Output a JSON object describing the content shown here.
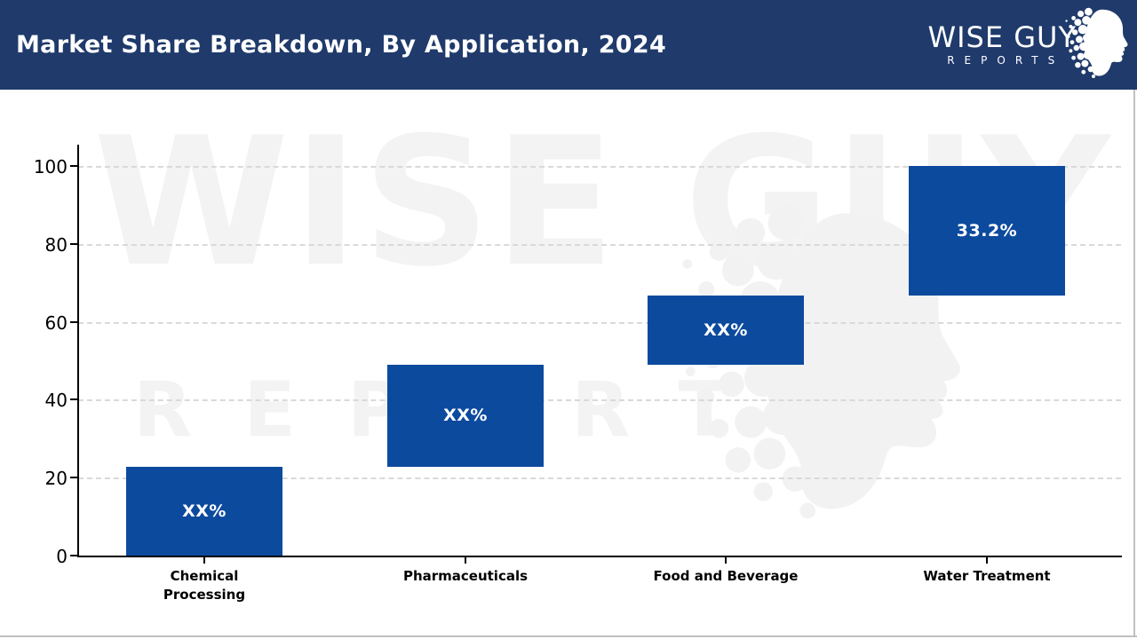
{
  "header": {
    "title": "Market Share Breakdown, By Application, 2024",
    "logo": {
      "line1": "WISE GUY",
      "line2": "REPORTS"
    }
  },
  "watermark": {
    "line1": "WISE GUY",
    "line2": "REPORTS"
  },
  "chart_data": {
    "type": "bar",
    "subtype": "waterfall",
    "title": "Market Share Breakdown, By Application, 2024",
    "categories": [
      "Chemical Processing",
      "Pharmaceuticals",
      "Food and Beverage",
      "Water Treatment"
    ],
    "series": [
      {
        "name": "Market share (%)",
        "segments": [
          {
            "category": "Chemical Processing",
            "start": 0,
            "end": 22.8,
            "label": "XX%"
          },
          {
            "category": "Pharmaceuticals",
            "start": 22.8,
            "end": 49.0,
            "label": "XX%"
          },
          {
            "category": "Food and Beverage",
            "start": 49.0,
            "end": 66.8,
            "label": "XX%"
          },
          {
            "category": "Water Treatment",
            "start": 66.8,
            "end": 100,
            "label": "33.2%"
          }
        ]
      }
    ],
    "ylim": [
      0,
      100
    ],
    "yticks": [
      "0",
      "20",
      "40",
      "60",
      "80",
      "100"
    ],
    "grid": "horizontal dashed",
    "legend": "none",
    "bar_color": "#0c4a9e",
    "header_bg_color": "#1f3a6b",
    "watermark_color": "#f3f3f3"
  }
}
